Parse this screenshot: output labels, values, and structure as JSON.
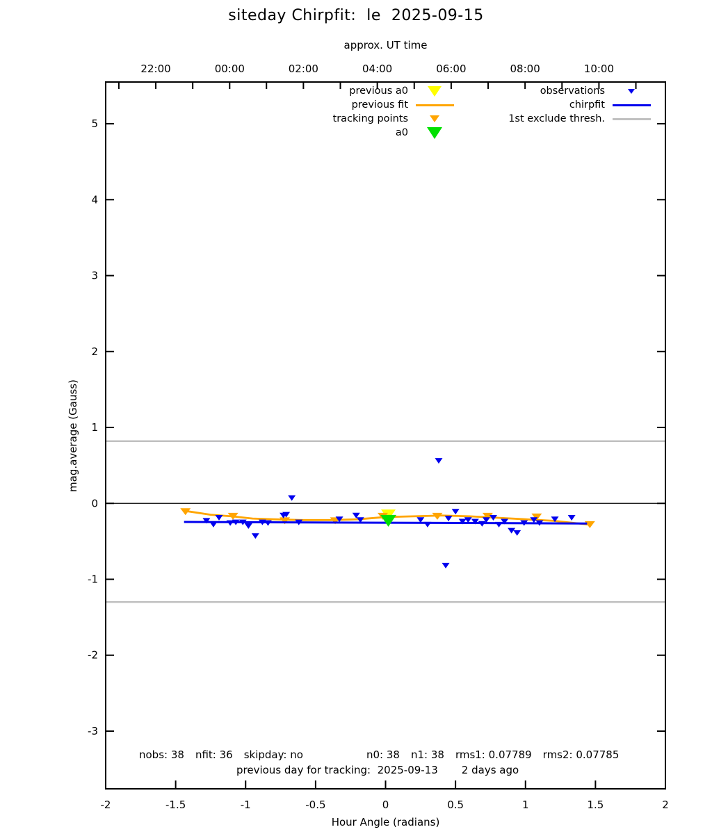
{
  "title": "siteday Chirpfit:  le  2025-09-15",
  "colors": {
    "blue": "#0000ee",
    "orange": "#ffa500",
    "yellow": "#ffff00",
    "green": "#00e000",
    "gray": "#c0c0c0",
    "black": "#000000"
  },
  "chart_data": {
    "type": "scatter",
    "title": "siteday Chirpfit:  le  2025-09-15",
    "top_axis_label": "approx. UT time",
    "xlabel": "Hour Angle (radians)",
    "ylabel": "mag.average (Gauss)",
    "xlim": [
      -2,
      2
    ],
    "ylim": [
      -3.76,
      5.55
    ],
    "x_ticks": [
      -2,
      -1.5,
      -1,
      -0.5,
      0,
      0.5,
      1,
      1.5,
      2
    ],
    "x_tick_labels": [
      "-2",
      "-1.5",
      "-1",
      "-0.5",
      "0",
      "0.5",
      "1",
      "1.5",
      "2"
    ],
    "y_ticks": [
      -3,
      -2,
      -1,
      0,
      1,
      2,
      3,
      4,
      5
    ],
    "y_tick_labels": [
      "-3",
      "-2",
      "-1",
      "0",
      "1",
      "2",
      "3",
      "4",
      "5"
    ],
    "top_ticks_major": [
      {
        "label": "22:00",
        "ha": -1.642
      },
      {
        "label": "00:00",
        "ha": -1.114
      },
      {
        "label": "02:00",
        "ha": -0.587
      },
      {
        "label": "04:00",
        "ha": -0.059
      },
      {
        "label": "06:00",
        "ha": 0.469
      },
      {
        "label": "08:00",
        "ha": 0.997
      },
      {
        "label": "10:00",
        "ha": 1.525
      }
    ],
    "top_ticks_minor_ha": [
      -1.906,
      -1.642,
      -1.378,
      -1.114,
      -0.851,
      -0.587,
      -0.323,
      -0.059,
      0.205,
      0.469,
      0.733,
      0.997,
      1.261,
      1.525,
      1.789
    ],
    "zero_line": 0,
    "exclude_thresholds": [
      0.82,
      -1.3
    ],
    "series": {
      "observations": [
        [
          -1.28,
          -0.23
        ],
        [
          -1.23,
          -0.28
        ],
        [
          -1.19,
          -0.19
        ],
        [
          -1.11,
          -0.26
        ],
        [
          -1.07,
          -0.25
        ],
        [
          -1.02,
          -0.25
        ],
        [
          -0.98,
          -0.3
        ],
        [
          -0.93,
          -0.43
        ],
        [
          -0.88,
          -0.25
        ],
        [
          -0.84,
          -0.26
        ],
        [
          -0.73,
          -0.16
        ],
        [
          -0.71,
          -0.15
        ],
        [
          -0.67,
          0.07
        ],
        [
          -0.62,
          -0.25
        ],
        [
          -0.33,
          -0.21
        ],
        [
          -0.21,
          -0.16
        ],
        [
          -0.18,
          -0.22
        ],
        [
          0.25,
          -0.22
        ],
        [
          0.3,
          -0.28
        ],
        [
          0.38,
          0.56
        ],
        [
          0.43,
          -0.82
        ],
        [
          0.45,
          -0.2
        ],
        [
          0.5,
          -0.11
        ],
        [
          0.55,
          -0.24
        ],
        [
          0.59,
          -0.22
        ],
        [
          0.64,
          -0.24
        ],
        [
          0.69,
          -0.27
        ],
        [
          0.72,
          -0.22
        ],
        [
          0.77,
          -0.19
        ],
        [
          0.81,
          -0.28
        ],
        [
          0.85,
          -0.24
        ],
        [
          0.9,
          -0.36
        ],
        [
          0.94,
          -0.39
        ],
        [
          0.99,
          -0.26
        ],
        [
          1.06,
          -0.22
        ],
        [
          1.1,
          -0.26
        ],
        [
          1.21,
          -0.21
        ],
        [
          1.33,
          -0.19
        ]
      ],
      "tracking_points": [
        [
          -1.43,
          -0.11
        ],
        [
          -1.09,
          -0.17
        ],
        [
          -0.72,
          -0.23
        ],
        [
          -0.36,
          -0.23
        ],
        [
          -0.02,
          -0.17
        ],
        [
          0.37,
          -0.17
        ],
        [
          0.73,
          -0.17
        ],
        [
          1.08,
          -0.18
        ],
        [
          1.46,
          -0.28
        ]
      ],
      "previous_fit": [
        [
          -1.43,
          -0.1
        ],
        [
          -1.25,
          -0.15
        ],
        [
          -1.1,
          -0.17
        ],
        [
          -0.95,
          -0.2
        ],
        [
          -0.8,
          -0.21
        ],
        [
          -0.6,
          -0.22
        ],
        [
          -0.4,
          -0.22
        ],
        [
          -0.2,
          -0.21
        ],
        [
          0.0,
          -0.18
        ],
        [
          0.2,
          -0.17
        ],
        [
          0.4,
          -0.16
        ],
        [
          0.6,
          -0.17
        ],
        [
          0.8,
          -0.19
        ],
        [
          1.0,
          -0.21
        ],
        [
          1.2,
          -0.23
        ],
        [
          1.46,
          -0.28
        ]
      ],
      "chirpfit": [
        [
          -1.44,
          -0.245
        ],
        [
          1.44,
          -0.265
        ]
      ],
      "previous_a0": [
        0.02,
        -0.15
      ],
      "a0": [
        0.02,
        -0.23
      ]
    },
    "legend": {
      "left": [
        {
          "label": "previous a0",
          "marker": "triangle-large",
          "color": "yellow"
        },
        {
          "label": "previous fit",
          "marker": "line",
          "color": "orange"
        },
        {
          "label": "tracking points",
          "marker": "triangle-medium",
          "color": "orange"
        },
        {
          "label": "a0",
          "marker": "triangle-xlarge",
          "color": "green"
        }
      ],
      "right": [
        {
          "label": "observations",
          "marker": "triangle-small",
          "color": "blue"
        },
        {
          "label": "chirpfit",
          "marker": "line",
          "color": "blue"
        },
        {
          "label": "1st exclude thresh.",
          "marker": "line",
          "color": "gray"
        }
      ]
    }
  },
  "stats": {
    "row1_left": [
      {
        "label": "nobs",
        "value": "38"
      },
      {
        "label": "nfit",
        "value": "36"
      },
      {
        "label": "skipday",
        "value": "no"
      }
    ],
    "row1_right": [
      {
        "label": "n0",
        "value": "38"
      },
      {
        "label": "n1",
        "value": "38"
      },
      {
        "label": "rms1",
        "value": "0.07789"
      },
      {
        "label": "rms2",
        "value": "0.07785"
      }
    ],
    "row2": {
      "label": "previous day for tracking",
      "value": "2025-09-13",
      "note": "2 days ago"
    }
  }
}
